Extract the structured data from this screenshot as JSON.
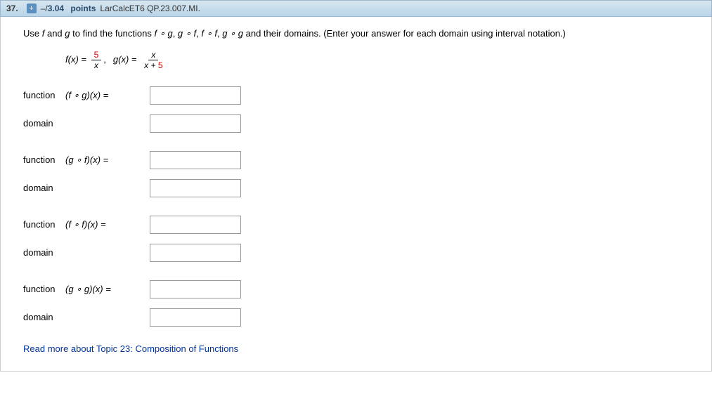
{
  "header": {
    "number": "37.",
    "expand_glyph": "+",
    "points_prefix": "–/",
    "points_value": "3.04",
    "points_suffix": " points",
    "reference": "LarCalcET6 QP.23.007.MI."
  },
  "instructions": {
    "prefix": "Use ",
    "f": "f",
    "and": " and ",
    "g": "g",
    "mid": " to find the functions  ",
    "fog": "f ∘ g",
    "sep": ", ",
    "gof": "g ∘ f",
    "fof": "f ∘ f",
    "gog": "g ∘ g",
    "rest": "  and their domains. (Enter your answer for each domain using interval notation.)"
  },
  "definitions": {
    "f_lhs": "f(x) = ",
    "f_num": "5",
    "f_den": "x",
    "comma": ",  ",
    "g_lhs": "g(x) = ",
    "g_num": "x",
    "g_den_a": "x + ",
    "g_den_b": "5"
  },
  "labels": {
    "function": "function",
    "domain": "domain"
  },
  "rows": [
    {
      "expr": "(f ∘ g)(x)  ="
    },
    {
      "expr": "(g ∘ f)(x)  ="
    },
    {
      "expr": "(f ∘ f)(x)  ="
    },
    {
      "expr": "(g ∘ g)(x)  ="
    }
  ],
  "topic_link": "Read more about Topic 23: Composition of Functions"
}
